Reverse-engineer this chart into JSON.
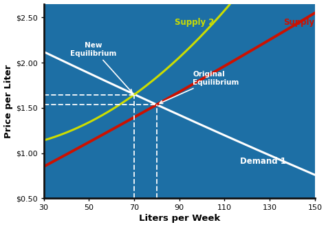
{
  "bg_color": "#1d6fa5",
  "fig_bg": "#ffffff",
  "xlim": [
    30,
    150
  ],
  "ylim": [
    0.5,
    2.65
  ],
  "xticks": [
    30,
    50,
    70,
    90,
    110,
    130,
    150
  ],
  "yticks": [
    0.5,
    1.0,
    1.5,
    2.0,
    2.5
  ],
  "ytick_labels": [
    "$0.50",
    "$1.00",
    "$1.50",
    "$2.00",
    "$2.50"
  ],
  "xlabel": "Liters per Week",
  "ylabel": "Price per Liter",
  "demand1_color": "white",
  "supply_color": "#cc1100",
  "supply2_color": "#ccdd00",
  "dashed_color": "white",
  "orig_eq_x": 80,
  "orig_eq_y": 1.535,
  "new_eq_x": 70,
  "new_eq_y": 1.645,
  "supply_label": "Supply",
  "supply2_label": "Supply 2",
  "demand1_label": "Demand 1",
  "orig_eq_label": "Original\nEquilibrium",
  "new_eq_label": "New\nEquilibrium"
}
